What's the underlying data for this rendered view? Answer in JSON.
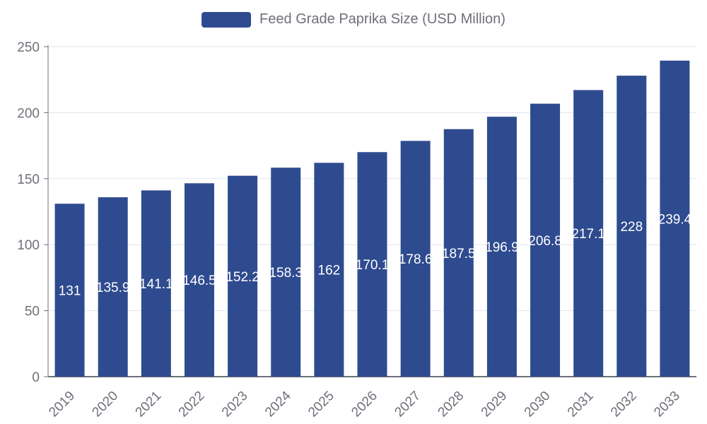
{
  "chart_data": {
    "type": "bar",
    "title": "Feed Grade Paprika Size (USD Million)",
    "categories": [
      "2019",
      "2020",
      "2021",
      "2022",
      "2023",
      "2024",
      "2025",
      "2026",
      "2027",
      "2028",
      "2029",
      "2030",
      "2031",
      "2032",
      "2033"
    ],
    "values": [
      131,
      135.9,
      141.1,
      146.5,
      152.2,
      158.3,
      162,
      170.1,
      178.6,
      187.5,
      196.9,
      206.8,
      217.1,
      228,
      239.4
    ],
    "ylim": [
      0,
      250
    ],
    "yticks": [
      0,
      50,
      100,
      150,
      200,
      250
    ],
    "xlabel": "",
    "ylabel": "",
    "legend_position": "top-center",
    "grid": true,
    "bar_color": "#2F4B8F",
    "bar_label_color": "#ffffff",
    "axis_label_color": "#6E7079",
    "grid_line_color": "#E0E6F1",
    "axis_line_color": "#6E7079"
  }
}
